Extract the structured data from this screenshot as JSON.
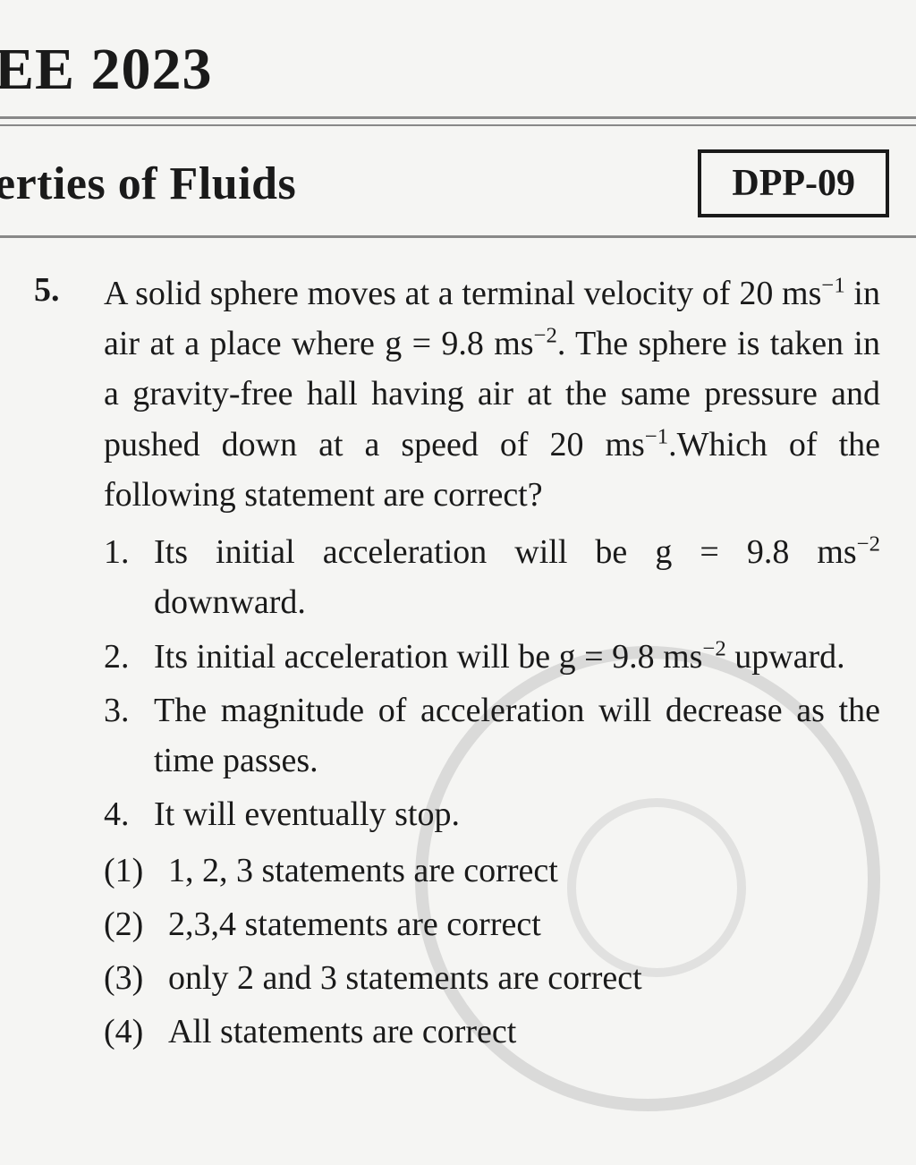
{
  "header": {
    "title": "EE 2023"
  },
  "subheader": {
    "title": "erties of Fluids",
    "badge": "DPP-09"
  },
  "question": {
    "number": "5.",
    "stem_parts": {
      "p1": "A solid sphere moves at a terminal velocity of 20 ms",
      "exp1": "−1",
      "p2": " in air at a place where g = 9.8 ms",
      "exp2": "−2",
      "p3": ". The sphere is taken in a gravity-free hall having air at the same pressure and pushed down at a speed of 20 ms",
      "exp3": "−1",
      "p4": ".Which of the following statement are correct?"
    },
    "statements": [
      {
        "pre": "Its initial acceleration will be g = 9.8 ms",
        "exp": "−2",
        "post": " downward."
      },
      {
        "pre": "Its initial acceleration will be g = 9.8 ms",
        "exp": "−2",
        "post": " upward."
      },
      {
        "pre": "The magnitude of acceleration will decrease as the time passes.",
        "exp": "",
        "post": ""
      },
      {
        "pre": "It will eventually stop.",
        "exp": "",
        "post": ""
      }
    ],
    "options": [
      {
        "label": "(1)",
        "text": "1, 2, 3 statements are correct"
      },
      {
        "label": "(2)",
        "text": "2,3,4 statements are correct"
      },
      {
        "label": "(3)",
        "text": "only 2 and 3 statements are correct"
      },
      {
        "label": "(4)",
        "text": "All statements are correct"
      }
    ]
  },
  "style": {
    "page_bg": "#f5f5f3",
    "text_color": "#1a1a1a",
    "rule_color": "#888888",
    "watermark_color": "rgba(140,140,140,0.25)"
  }
}
